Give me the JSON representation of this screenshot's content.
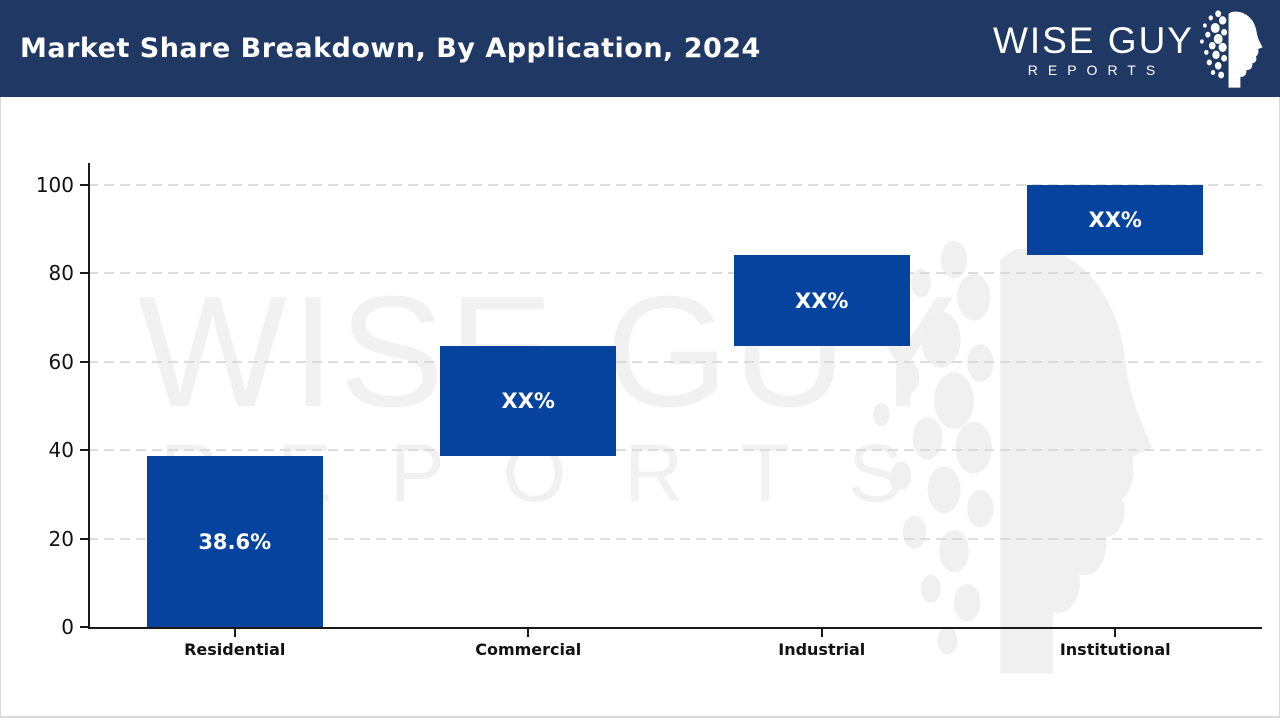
{
  "header": {
    "title": "Market Share Breakdown, By Application, 2024",
    "bg_color": "#1f3864",
    "logo": {
      "line1": "WISE GUY",
      "line2": "REPORTS"
    }
  },
  "watermark": {
    "line1": "WISE GUY",
    "line2": "REPORTS"
  },
  "chart_data": {
    "type": "bar",
    "subtype": "waterfall-floating-bars",
    "title": "Market Share Breakdown, By Application, 2024",
    "categories": [
      "Residential",
      "Commercial",
      "Industrial",
      "Institutional"
    ],
    "segments": [
      {
        "category": "Residential",
        "start": 0,
        "end": 38.6,
        "label": "38.6%"
      },
      {
        "category": "Commercial",
        "start": 38.6,
        "end": 63.5,
        "label": "XX%"
      },
      {
        "category": "Industrial",
        "start": 63.5,
        "end": 84.0,
        "label": "XX%"
      },
      {
        "category": "Institutional",
        "start": 84.0,
        "end": 100,
        "label": "XX%"
      }
    ],
    "xlabel": "",
    "ylabel": "",
    "ylim": [
      0,
      100
    ],
    "yticks": [
      0,
      20,
      40,
      60,
      80,
      100
    ],
    "grid": "horizontal dashed",
    "legend": "none",
    "bar_color": "#05439e",
    "bar_label_color": "#ffffff",
    "axis_color": "#1a1a1a",
    "gridline_color": "#dcdcdc"
  }
}
